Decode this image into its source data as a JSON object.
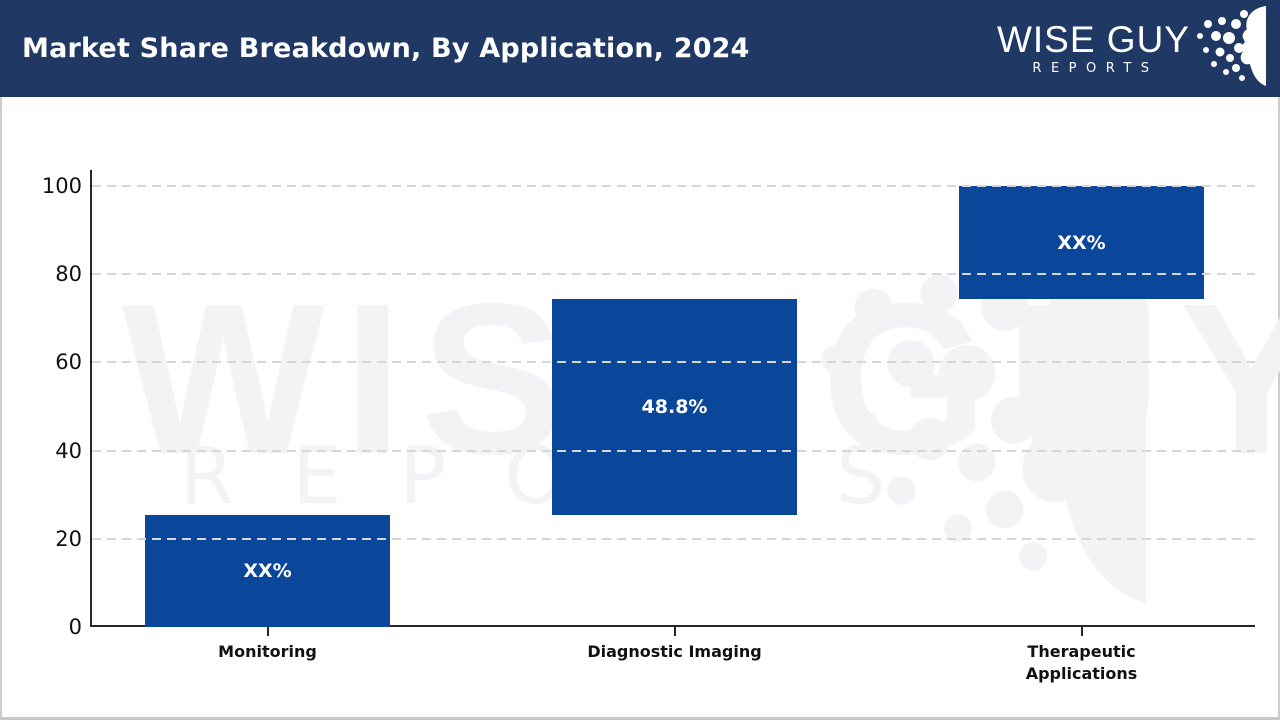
{
  "header": {
    "title": "Market Share Breakdown, By Application, 2024",
    "bg_color": "#1f3864",
    "logo": {
      "line1": "WISE GUY",
      "line2": "REPORTS"
    }
  },
  "watermark": {
    "line1": "WISE GUY",
    "line2": "REPORTS"
  },
  "chart_data": {
    "type": "bar",
    "subtype": "waterfall",
    "title": "Market Share Breakdown, By Application, 2024",
    "xlabel": "",
    "ylabel": "",
    "categories": [
      "Monitoring",
      "Diagnostic Imaging",
      "Therapeutic Applications"
    ],
    "segments": [
      {
        "category": "Monitoring",
        "start": 0,
        "end": 25.5,
        "label": "XX%"
      },
      {
        "category": "Diagnostic Imaging",
        "start": 25.5,
        "end": 74.3,
        "label": "48.8%"
      },
      {
        "category": "Therapeutic Applications",
        "start": 74.3,
        "end": 100,
        "label": "XX%"
      }
    ],
    "yticks": [
      0,
      20,
      40,
      60,
      80,
      100
    ],
    "ylim": [
      0,
      103.6
    ],
    "grid": "horizontal dashed, drawn above bars",
    "bar_color": "#0a4699",
    "bar_label_color": "#ffffff",
    "axis_color": "#262626",
    "gridline_color": "#d6d6d6",
    "legend": "none"
  }
}
